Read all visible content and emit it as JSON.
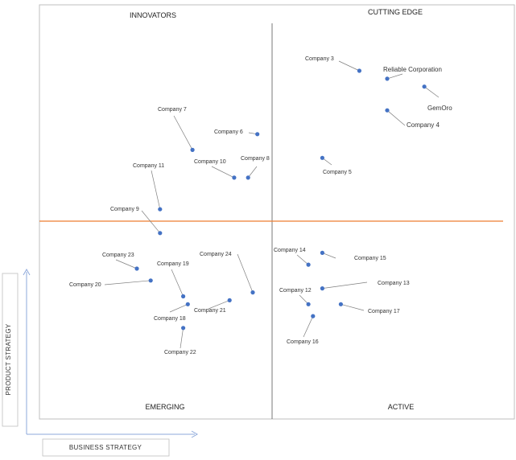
{
  "chart_data": {
    "type": "scatter",
    "title": "",
    "xlabel": "BUSINESS STRATEGY",
    "ylabel": "PRODUCT STRATEGY",
    "xlim": [
      0,
      10
    ],
    "ylim": [
      0,
      10
    ],
    "grid": false,
    "quadrants": {
      "top_left": "INNOVATORS",
      "top_right": "CUTTING EDGE",
      "bottom_left": "EMERGING",
      "bottom_right": "ACTIVE"
    },
    "points": [
      {
        "label": "Company 3",
        "x": 6.9,
        "y": 8.8
      },
      {
        "label": "Reliable Corporation",
        "x": 7.5,
        "y": 8.6
      },
      {
        "label": "GemOro",
        "x": 8.3,
        "y": 8.4
      },
      {
        "label": "Company 4",
        "x": 7.5,
        "y": 7.8
      },
      {
        "label": "Company 5",
        "x": 6.1,
        "y": 6.6
      },
      {
        "label": "Company 7",
        "x": 3.3,
        "y": 6.8
      },
      {
        "label": "Company 6",
        "x": 4.7,
        "y": 7.2
      },
      {
        "label": "Company 8",
        "x": 4.5,
        "y": 6.1
      },
      {
        "label": "Company 10",
        "x": 4.2,
        "y": 6.1
      },
      {
        "label": "Company 11",
        "x": 2.6,
        "y": 5.3
      },
      {
        "label": "Company 9",
        "x": 2.6,
        "y": 4.7
      },
      {
        "label": "Company 23",
        "x": 2.1,
        "y": 3.8
      },
      {
        "label": "Company 20",
        "x": 2.4,
        "y": 3.5
      },
      {
        "label": "Company 19",
        "x": 3.1,
        "y": 3.1
      },
      {
        "label": "Company 24",
        "x": 4.6,
        "y": 3.2
      },
      {
        "label": "Company 21",
        "x": 4.1,
        "y": 3.0
      },
      {
        "label": "Company 18",
        "x": 3.2,
        "y": 2.9
      },
      {
        "label": "Company 22",
        "x": 3.1,
        "y": 2.3
      },
      {
        "label": "Company 14",
        "x": 5.8,
        "y": 3.9
      },
      {
        "label": "Company 15",
        "x": 6.1,
        "y": 4.2
      },
      {
        "label": "Company 13",
        "x": 6.1,
        "y": 3.3
      },
      {
        "label": "Company 12",
        "x": 5.8,
        "y": 2.9
      },
      {
        "label": "Company 17",
        "x": 6.5,
        "y": 2.9
      },
      {
        "label": "Company 16",
        "x": 5.9,
        "y": 2.6
      }
    ]
  },
  "colors": {
    "point": "#4472C4",
    "leader": "#7f7f7f",
    "divider_horizontal": "#ED7D31",
    "divider_vertical": "#595959",
    "axis_arrow": "#8EA9DB",
    "frame": "#bfbfbf"
  }
}
